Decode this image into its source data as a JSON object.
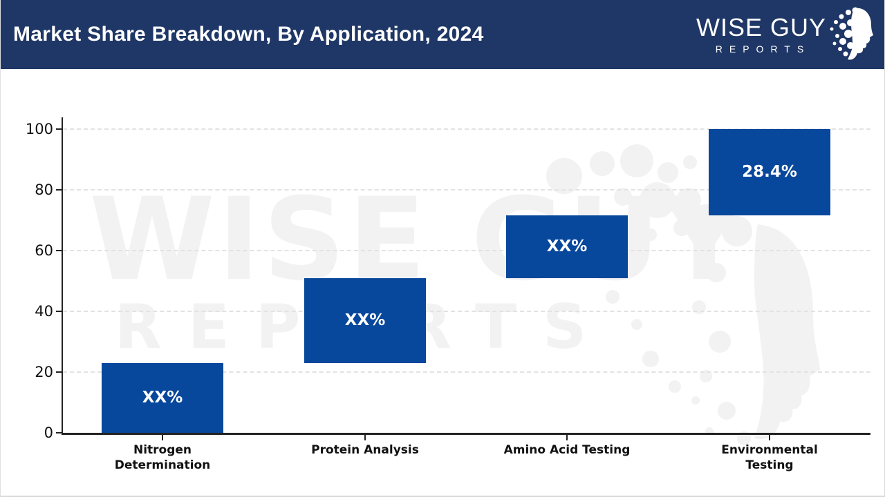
{
  "header": {
    "title": "Market Share Breakdown, By Application, 2024",
    "logo": {
      "line1": "WISE GUY",
      "line2": "REPORTS"
    }
  },
  "watermark": {
    "line1": "WISE GUY",
    "line2": "REPORTS"
  },
  "colors": {
    "header_bg": "#1f3766",
    "bar_blue": "#07479c",
    "grid_gray": "#e2e2e2",
    "axis_dark": "#222222",
    "watermark_gray": "#f2f2f2",
    "bar_label_white": "#ffffff",
    "text_dark": "#111111",
    "border_gray": "#d9d9d9"
  },
  "chart_data": {
    "type": "bar",
    "variant": "floating-stacked-segments",
    "title": "Market Share Breakdown, By Application, 2024",
    "categories": [
      "Nitrogen Determination",
      "Protein Analysis",
      "Amino Acid Testing",
      "Environmental Testing"
    ],
    "category_lines": [
      [
        "Nitrogen",
        "Determination"
      ],
      [
        "Protein Analysis"
      ],
      [
        "Amino Acid Testing"
      ],
      [
        "Environmental",
        "Testing"
      ]
    ],
    "segments": [
      {
        "category": "Nitrogen Determination",
        "from": 0,
        "to": 23,
        "label": "XX%"
      },
      {
        "category": "Protein Analysis",
        "from": 23,
        "to": 51,
        "label": "XX%"
      },
      {
        "category": "Amino Acid Testing",
        "from": 51,
        "to": 71.6,
        "label": "XX%"
      },
      {
        "category": "Environmental Testing",
        "from": 71.6,
        "to": 100,
        "label": "28.4%"
      }
    ],
    "xlabel": "",
    "ylabel": "",
    "ylim": [
      0,
      100
    ],
    "yticks": [
      0,
      20,
      40,
      60,
      80,
      100
    ],
    "grid": "horizontal-dashed",
    "legend": "none"
  }
}
